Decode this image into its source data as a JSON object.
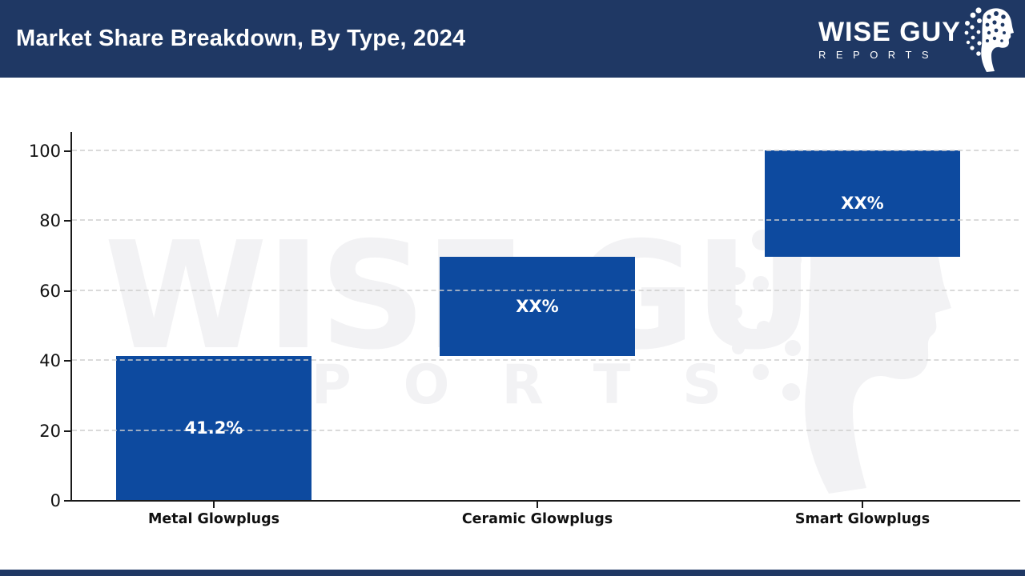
{
  "header": {
    "title": "Market Share Breakdown, By Type, 2024",
    "logo": {
      "line1": "WISE GUY",
      "line2": "REPORTS"
    }
  },
  "watermark": {
    "line1": "WISE GUY",
    "line2": "REPORTS"
  },
  "footer": {},
  "chart_data": {
    "type": "bar",
    "subtype": "waterfall",
    "title": "Market Share Breakdown, By Type, 2024",
    "categories": [
      "Metal Glowplugs",
      "Ceramic Glowplugs",
      "Smart Glowplugs"
    ],
    "segments": [
      {
        "category": "Metal Glowplugs",
        "start": 0,
        "end": 41.2,
        "label": "41.2%"
      },
      {
        "category": "Ceramic Glowplugs",
        "start": 41.2,
        "end": 69.5,
        "label": "XX%"
      },
      {
        "category": "Smart Glowplugs",
        "start": 69.5,
        "end": 100,
        "label": "XX%"
      }
    ],
    "yticks": [
      0,
      20,
      40,
      60,
      80,
      100
    ],
    "ylim": [
      0,
      105
    ],
    "xlabel": "",
    "ylabel": "",
    "grid": true,
    "legend": "none",
    "bar_color": "#0d4a9f",
    "bar_label_color": "#ffffff"
  },
  "colors": {
    "header_bg": "#1f3864",
    "footer_bg": "#1f3864",
    "bar": "#0d4a9f",
    "watermark": "#f2f2f4",
    "gridline": "#cdcdcd",
    "axis": "#1a1a1a"
  }
}
